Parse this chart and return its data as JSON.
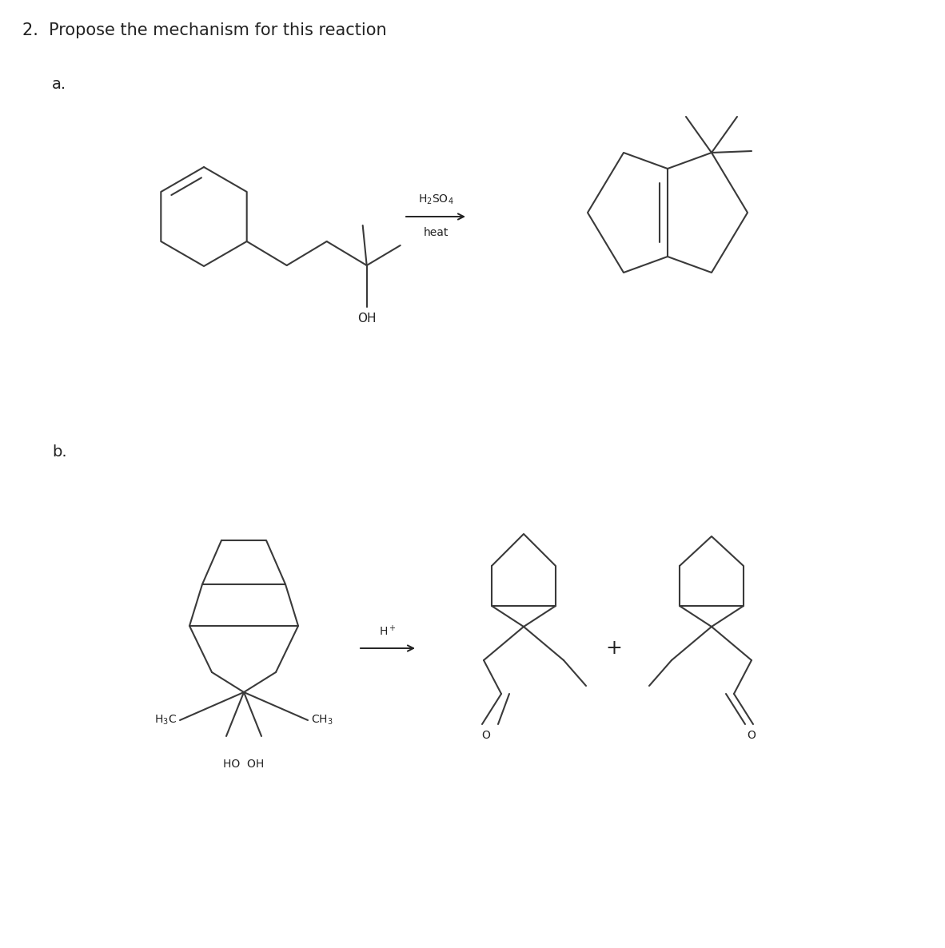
{
  "title": "2.  Propose the mechanism for this reaction",
  "label_a": "a.",
  "label_b": "b.",
  "bg_color": "#ffffff",
  "line_color": "#3a3a3a",
  "line_width": 1.5,
  "font_size_title": 15,
  "font_size_label": 14,
  "font_size_chem": 11
}
